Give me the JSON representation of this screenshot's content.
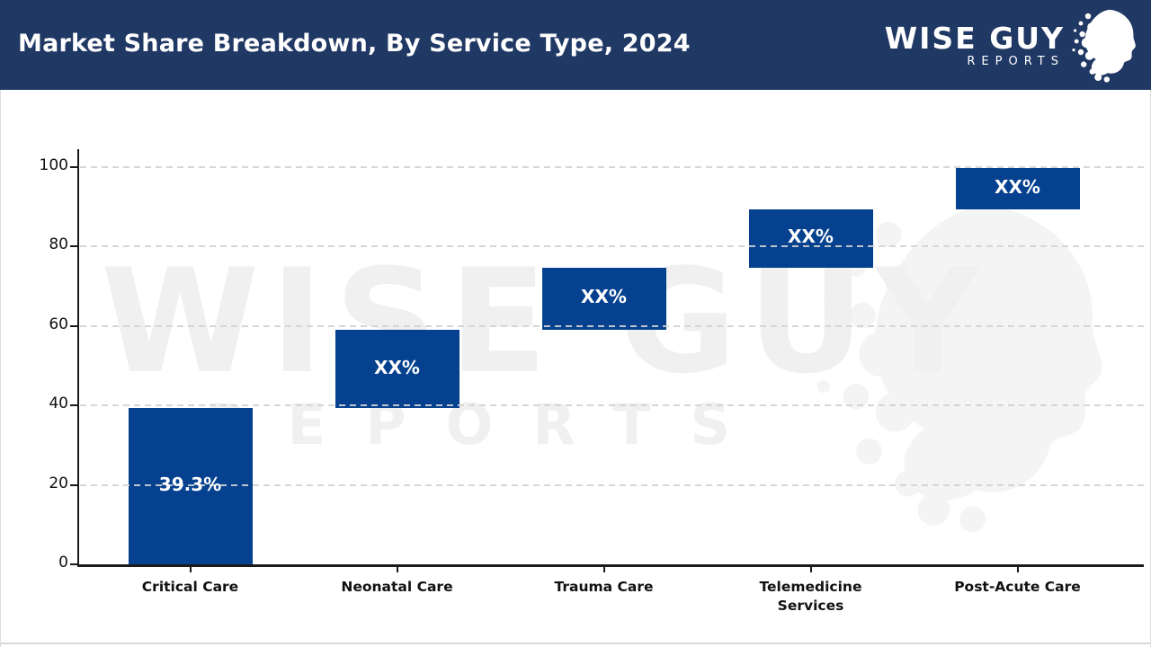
{
  "header": {
    "title": "Market Share Breakdown, By Service Type, 2024",
    "logo": {
      "line1": "WISE GUY",
      "line2": "REPORTS"
    }
  },
  "watermark": {
    "line1": "WISE GUY",
    "line2": "REPORTS"
  },
  "colors": {
    "header_bg": "#203864",
    "bar": "#05418f",
    "grid": "#d2d2d2",
    "axis": "#1a1a1a",
    "bar_label": "#ffffff",
    "watermark": "#f0f0f0"
  },
  "chart_data": {
    "type": "bar",
    "subtype": "waterfall",
    "title": "Market Share Breakdown, By Service Type, 2024",
    "xlabel": "",
    "ylabel": "",
    "ylim": [
      0,
      104
    ],
    "y_ticks": [
      0,
      20,
      40,
      60,
      80,
      100
    ],
    "grid": {
      "axis": "y",
      "style": "dashed",
      "drawn_over_bars": true
    },
    "legend": "none",
    "bar_color": "#05418f",
    "categories": [
      "Critical Care",
      "Neonatal Care",
      "Trauma Care",
      "Telemedicine\nServices",
      "Post-Acute Care"
    ],
    "segments": [
      {
        "category": "Critical Care",
        "start": 0,
        "end": 39.3,
        "value_label": "39.3%"
      },
      {
        "category": "Neonatal Care",
        "start": 39.3,
        "end": 59.0,
        "value_label": "XX%"
      },
      {
        "category": "Trauma Care",
        "start": 59.0,
        "end": 74.6,
        "value_label": "XX%"
      },
      {
        "category": "Telemedicine Services",
        "start": 74.6,
        "end": 89.3,
        "value_label": "XX%"
      },
      {
        "category": "Post-Acute Care",
        "start": 89.3,
        "end": 99.7,
        "value_label": "XX%"
      }
    ]
  }
}
